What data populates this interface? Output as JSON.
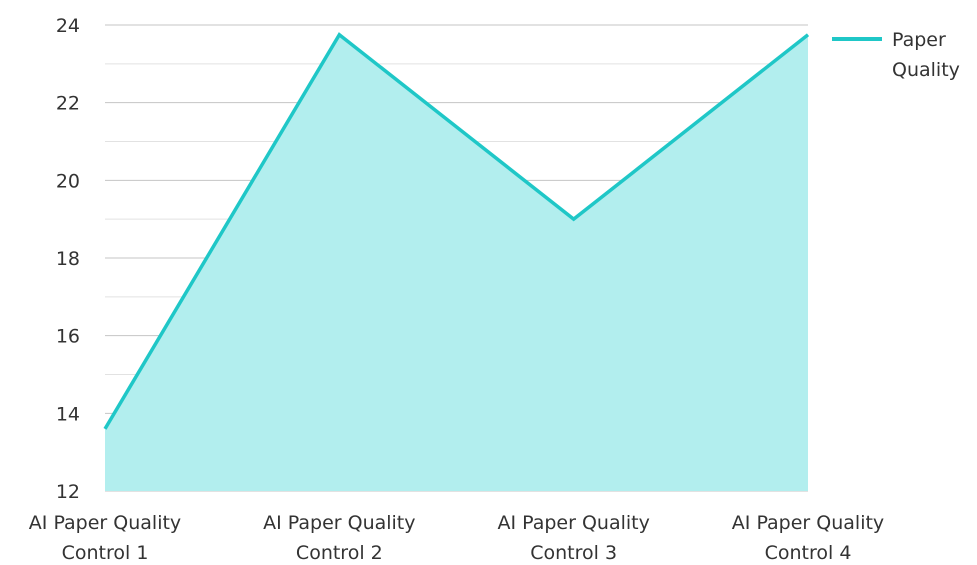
{
  "chart_data": {
    "type": "area",
    "title": "",
    "xlabel": "",
    "ylabel": "",
    "categories": [
      "AI Paper Quality Control 1",
      "AI Paper Quality Control 2",
      "AI Paper Quality Control 3",
      "AI Paper Quality Control 4"
    ],
    "category_lines": [
      [
        "AI Paper Quality",
        "Control 1"
      ],
      [
        "AI Paper Quality",
        "Control 2"
      ],
      [
        "AI Paper Quality",
        "Control 3"
      ],
      [
        "AI Paper Quality",
        "Control 4"
      ]
    ],
    "series": [
      {
        "name": "Paper Quality",
        "name_lines": [
          "Paper",
          "Quality"
        ],
        "values": [
          13.6,
          23.75,
          19.0,
          23.75
        ]
      }
    ],
    "ylim": [
      12,
      24
    ],
    "yticks": [
      12,
      14,
      16,
      18,
      20,
      22,
      24
    ],
    "grid": true,
    "legend": "top-right",
    "colors": {
      "line": "#1FC7C7",
      "fill": "#B2EEEE",
      "grid_major": "#C4C4C4",
      "grid_minor": "#E2E2E2",
      "text": "#333333"
    }
  }
}
